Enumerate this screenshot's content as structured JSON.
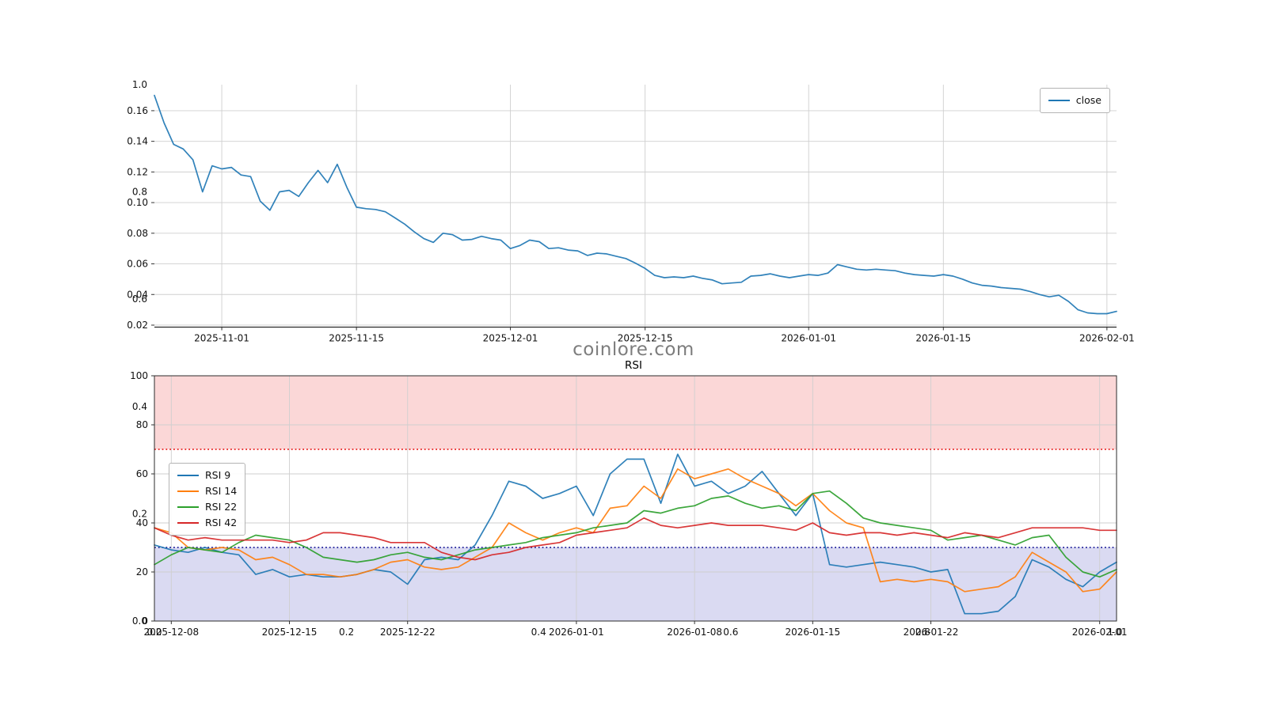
{
  "watermark": "coinlore.com",
  "hidden_axes_labels": {
    "left": [
      "1.0",
      "0.8",
      "0.6",
      "0.4",
      "0.2",
      "0.0"
    ],
    "bottom": [
      "0.0",
      "0.2",
      "0.4",
      "0.6",
      "0.8",
      "1.0"
    ]
  },
  "colors": {
    "grid": "#cfcfcf",
    "spine": "#2b2b2b",
    "overbought_line": "#e60000",
    "oversold_line": "#00008b",
    "overbought_band": "#fbd7d7",
    "oversold_band": "#dadaf2"
  },
  "chart_data": [
    {
      "id": "price",
      "type": "line",
      "title": "",
      "x_count": 101,
      "ylim": [
        0.0187,
        0.177
      ],
      "x_ticks": [
        {
          "i": 7,
          "label": "2025-11-01"
        },
        {
          "i": 21,
          "label": "2025-11-15"
        },
        {
          "i": 37,
          "label": "2025-12-01"
        },
        {
          "i": 51,
          "label": "2025-12-15"
        },
        {
          "i": 68,
          "label": "2026-01-01"
        },
        {
          "i": 82,
          "label": "2026-01-15"
        },
        {
          "i": 99,
          "label": "2026-02-01"
        }
      ],
      "y_ticks": [
        {
          "v": 0.02,
          "label": "0.02"
        },
        {
          "v": 0.04,
          "label": "0.04"
        },
        {
          "v": 0.06,
          "label": "0.06"
        },
        {
          "v": 0.08,
          "label": "0.08"
        },
        {
          "v": 0.1,
          "label": "0.10"
        },
        {
          "v": 0.12,
          "label": "0.12"
        },
        {
          "v": 0.14,
          "label": "0.14"
        },
        {
          "v": 0.16,
          "label": "0.16"
        }
      ],
      "legend_position": "top-right",
      "series": [
        {
          "name": "close",
          "color": "#1f77b4",
          "values": [
            0.17,
            0.152,
            0.138,
            0.135,
            0.128,
            0.107,
            0.124,
            0.122,
            0.123,
            0.118,
            0.117,
            0.101,
            0.095,
            0.107,
            0.108,
            0.104,
            0.113,
            0.121,
            0.113,
            0.125,
            0.11,
            0.097,
            0.096,
            0.0955,
            0.094,
            0.09,
            0.086,
            0.081,
            0.0765,
            0.074,
            0.08,
            0.079,
            0.0755,
            0.076,
            0.078,
            0.0765,
            0.0755,
            0.07,
            0.072,
            0.0755,
            0.0745,
            0.07,
            0.0705,
            0.069,
            0.0685,
            0.0655,
            0.067,
            0.0665,
            0.065,
            0.0635,
            0.0605,
            0.057,
            0.0525,
            0.051,
            0.0515,
            0.051,
            0.052,
            0.0505,
            0.0495,
            0.047,
            0.0475,
            0.048,
            0.052,
            0.0525,
            0.0535,
            0.052,
            0.051,
            0.052,
            0.053,
            0.0525,
            0.054,
            0.0595,
            0.058,
            0.0565,
            0.056,
            0.0565,
            0.056,
            0.0555,
            0.054,
            0.053,
            0.0525,
            0.052,
            0.053,
            0.052,
            0.05,
            0.0475,
            0.046,
            0.0455,
            0.0445,
            0.044,
            0.0435,
            0.042,
            0.04,
            0.0385,
            0.0395,
            0.0355,
            0.03,
            0.028,
            0.0275,
            0.0275,
            0.029
          ]
        }
      ]
    },
    {
      "id": "rsi",
      "type": "line",
      "title": "RSI",
      "x_count": 58,
      "ylim": [
        0,
        100
      ],
      "x_ticks": [
        {
          "i": 1,
          "label": "2025-12-08"
        },
        {
          "i": 8,
          "label": "2025-12-15"
        },
        {
          "i": 15,
          "label": "2025-12-22"
        },
        {
          "i": 25,
          "label": "2026-01-01"
        },
        {
          "i": 32,
          "label": "2026-01-08"
        },
        {
          "i": 39,
          "label": "2026-01-15"
        },
        {
          "i": 46,
          "label": "2026-01-22"
        },
        {
          "i": 56,
          "label": "2026-02-01"
        }
      ],
      "y_ticks": [
        {
          "v": 0,
          "label": "0"
        },
        {
          "v": 20,
          "label": "20"
        },
        {
          "v": 40,
          "label": "40"
        },
        {
          "v": 60,
          "label": "60"
        },
        {
          "v": 80,
          "label": "80"
        },
        {
          "v": 100,
          "label": "100"
        }
      ],
      "bands": [
        {
          "from": 70,
          "to": 100,
          "color": "#fbd7d7"
        },
        {
          "from": 0,
          "to": 30,
          "color": "#dadaf2"
        }
      ],
      "hlines": [
        {
          "v": 70,
          "color": "#e60000"
        },
        {
          "v": 30,
          "color": "#00008b"
        }
      ],
      "legend_position": "left",
      "series": [
        {
          "name": "RSI 9",
          "color": "#1f77b4",
          "values": [
            31,
            29,
            28,
            30,
            28,
            27,
            19,
            21,
            18,
            19,
            18,
            18,
            19,
            21,
            20,
            15,
            25,
            26,
            25,
            31,
            43,
            57,
            55,
            50,
            52,
            55,
            43,
            60,
            66,
            66,
            48,
            68,
            55,
            57,
            52,
            55,
            61,
            52,
            43,
            52,
            23,
            22,
            23,
            24,
            23,
            22,
            20,
            21,
            3,
            3,
            4,
            10,
            25,
            22,
            17,
            14,
            20,
            24
          ]
        },
        {
          "name": "RSI 14",
          "color": "#ff7f0e",
          "values": [
            38,
            36,
            30,
            29,
            30,
            29,
            25,
            26,
            23,
            19,
            19,
            18,
            19,
            21,
            24,
            25,
            22,
            21,
            22,
            26,
            30,
            40,
            36,
            33,
            36,
            38,
            36,
            46,
            47,
            55,
            50,
            62,
            58,
            60,
            62,
            58,
            55,
            52,
            47,
            52,
            45,
            40,
            38,
            16,
            17,
            16,
            17,
            16,
            12,
            13,
            14,
            18,
            28,
            24,
            20,
            12,
            13,
            20
          ]
        },
        {
          "name": "RSI 22",
          "color": "#2ca02c",
          "values": [
            23,
            27,
            30,
            29,
            28,
            32,
            35,
            34,
            33,
            30,
            26,
            25,
            24,
            25,
            27,
            28,
            26,
            25,
            27,
            29,
            30,
            31,
            32,
            34,
            35,
            36,
            38,
            39,
            40,
            45,
            44,
            46,
            47,
            50,
            51,
            48,
            46,
            47,
            45,
            52,
            53,
            48,
            42,
            40,
            39,
            38,
            37,
            33,
            34,
            35,
            33,
            31,
            34,
            35,
            26,
            20,
            18,
            21
          ]
        },
        {
          "name": "RSI 42",
          "color": "#d62728",
          "values": [
            38,
            35,
            33,
            34,
            33,
            33,
            33,
            33,
            32,
            33,
            36,
            36,
            35,
            34,
            32,
            32,
            32,
            28,
            26,
            25,
            27,
            28,
            30,
            31,
            32,
            35,
            36,
            37,
            38,
            42,
            39,
            38,
            39,
            40,
            39,
            39,
            39,
            38,
            37,
            40,
            36,
            35,
            36,
            36,
            35,
            36,
            35,
            34,
            36,
            35,
            34,
            36,
            38,
            38,
            38,
            38,
            37,
            37
          ]
        }
      ]
    }
  ]
}
